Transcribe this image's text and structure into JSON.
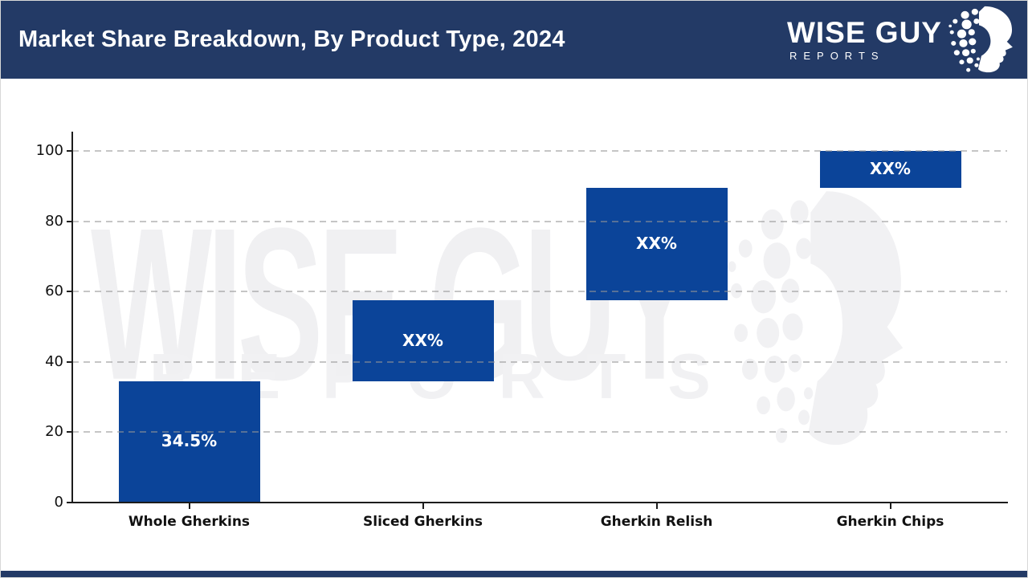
{
  "header": {
    "title": "Market Share Breakdown, By Product Type, 2024",
    "logo": {
      "line1": "WISE GUY",
      "line2": "REPORTS"
    }
  },
  "watermark": {
    "line1": "WISE GUY",
    "line2": "REPORTS"
  },
  "chart_data": {
    "type": "bar",
    "subtype": "waterfall",
    "title": "Market Share Breakdown, By Product Type, 2024",
    "categories": [
      "Whole Gherkins",
      "Sliced Gherkins",
      "Gherkin Relish",
      "Gherkin Chips"
    ],
    "segments": [
      {
        "category": "Whole Gherkins",
        "start": 0,
        "end": 34.5,
        "label": "34.5%"
      },
      {
        "category": "Sliced Gherkins",
        "start": 34.5,
        "end": 57.5,
        "label": "XX%"
      },
      {
        "category": "Gherkin Relish",
        "start": 57.5,
        "end": 89.5,
        "label": "XX%"
      },
      {
        "category": "Gherkin Chips",
        "start": 89.5,
        "end": 100,
        "label": "XX%"
      }
    ],
    "xlabel": "",
    "ylabel": "",
    "ylim": [
      0,
      100
    ],
    "yticks": [
      0,
      20,
      40,
      60,
      80,
      100
    ],
    "grid": "horizontal-dashed",
    "legend": "none",
    "bar_color": "#0b4499",
    "bar_label_color": "#ffffff",
    "header_color": "#233a66"
  }
}
